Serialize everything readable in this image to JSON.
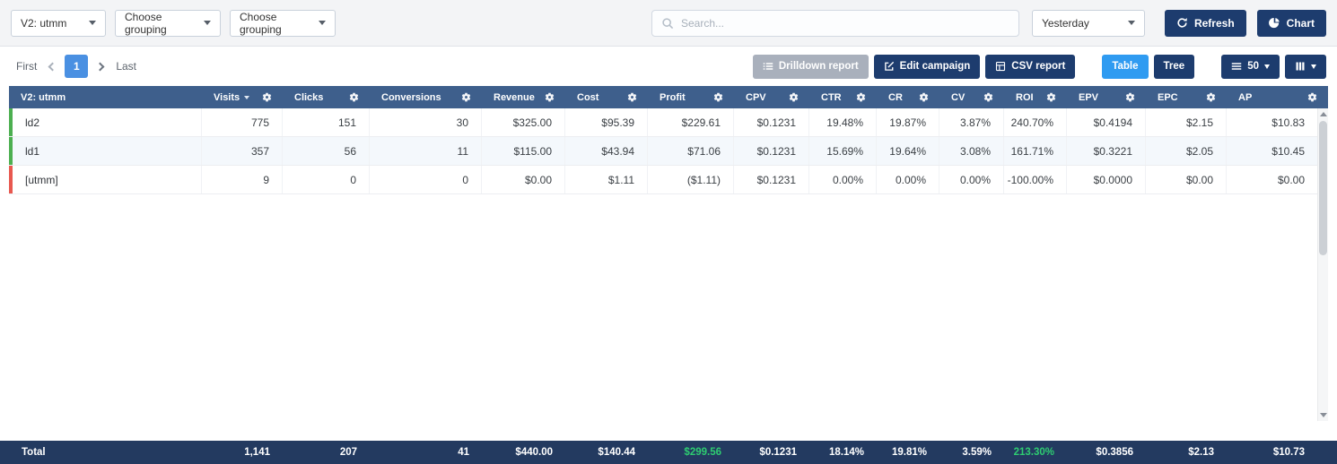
{
  "toolbar": {
    "campaign_select": "V2: utmm",
    "grouping_1": "Choose grouping",
    "grouping_2": "Choose grouping",
    "search_placeholder": "Search...",
    "date_select": "Yesterday",
    "refresh_label": "Refresh",
    "chart_label": "Chart"
  },
  "pagination": {
    "first_label": "First",
    "current_page": "1",
    "last_label": "Last"
  },
  "actions": {
    "drilldown_label": "Drilldown report",
    "edit_label": "Edit campaign",
    "csv_label": "CSV report",
    "table_label": "Table",
    "tree_label": "Tree",
    "page_size": "50"
  },
  "table": {
    "name_column": "V2: utmm",
    "columns": [
      {
        "label": "Visits",
        "sorted": true
      },
      {
        "label": "Clicks"
      },
      {
        "label": "Conversions"
      },
      {
        "label": "Revenue"
      },
      {
        "label": "Cost"
      },
      {
        "label": "Profit"
      },
      {
        "label": "CPV"
      },
      {
        "label": "CTR"
      },
      {
        "label": "CR"
      },
      {
        "label": "CV"
      },
      {
        "label": "ROI"
      },
      {
        "label": "EPV"
      },
      {
        "label": "EPC"
      },
      {
        "label": "AP"
      }
    ],
    "rows": [
      {
        "name": "ld2",
        "status": "green",
        "trend": "up",
        "values": [
          "775",
          "151",
          "30",
          "$325.00",
          "$95.39",
          "$229.61",
          "$0.1231",
          "19.48%",
          "19.87%",
          "3.87%",
          "240.70%",
          "$0.4194",
          "$2.15",
          "$10.83"
        ]
      },
      {
        "name": "ld1",
        "status": "green",
        "trend": "up",
        "values": [
          "357",
          "56",
          "11",
          "$115.00",
          "$43.94",
          "$71.06",
          "$0.1231",
          "15.69%",
          "19.64%",
          "3.08%",
          "161.71%",
          "$0.3221",
          "$2.05",
          "$10.45"
        ]
      },
      {
        "name": "[utmm]",
        "status": "red",
        "trend": "down",
        "values": [
          "9",
          "0",
          "0",
          "$0.00",
          "$1.11",
          "($1.11)",
          "$0.1231",
          "0.00%",
          "0.00%",
          "0.00%",
          "-100.00%",
          "$0.0000",
          "$0.00",
          "$0.00"
        ]
      }
    ],
    "total": {
      "label": "Total",
      "trend": "up",
      "values": [
        "1,141",
        "207",
        "41",
        "$440.00",
        "$140.44",
        "$299.56",
        "$0.1231",
        "18.14%",
        "19.81%",
        "3.59%",
        "213.30%",
        "$0.3856",
        "$2.13",
        "$10.73"
      ]
    }
  },
  "colors": {
    "header_bg": "#3e5f8c",
    "total_bg": "#233a60",
    "button_navy": "#1d3c6e",
    "active_blue": "#2f9bf1",
    "page_blue": "#4a90e2",
    "positive": "#27a65f",
    "positive_total": "#2ecc71",
    "negative": "#e74c3c",
    "indicator_green": "#4caf50",
    "indicator_red": "#e8584f"
  },
  "icons": {
    "search": "magnifier",
    "refresh": "circular-arrow",
    "chart": "pie",
    "drilldown": "list",
    "edit": "pencil-square",
    "csv": "table-file",
    "page_size": "hamburger",
    "columns": "vertical-bars",
    "select_caret": "triangle-down",
    "sort": "triangle-down",
    "column_settings": "gear",
    "prev": "chevron-left",
    "next": "chevron-right",
    "scroll": "triangle-up / triangle-down"
  }
}
